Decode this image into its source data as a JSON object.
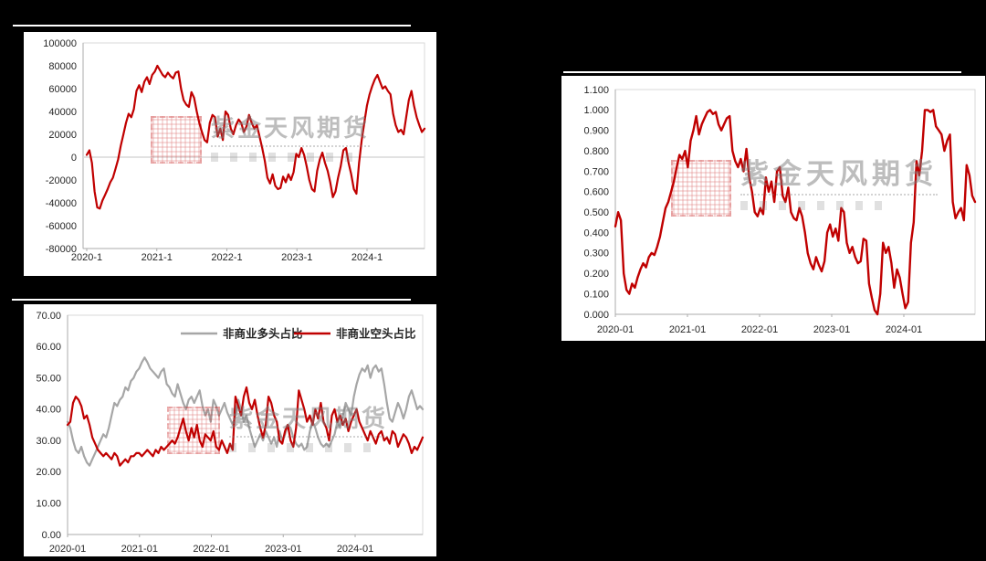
{
  "page": {
    "background_color": "#000000",
    "panel_color": "#ffffff",
    "divider_color": "#ffffff"
  },
  "watermark": {
    "brand_text": "紫金天风期货",
    "stamp_color": "#c00000",
    "text_color": "#7d7d7d"
  },
  "chart_data": [
    {
      "id": "cot_net",
      "type": "line",
      "title": "",
      "xlabel": "",
      "ylabel": "",
      "ylim": [
        -80000,
        100000
      ],
      "yticks": [
        "100000",
        "80000",
        "60000",
        "40000",
        "20000",
        "0",
        "-20000",
        "-40000",
        "-60000",
        "-80000"
      ],
      "negative_tick_color": "#fb2020",
      "xticks": [
        "2020-1",
        "2021-1",
        "2022-1",
        "2023-1",
        "2024-1"
      ],
      "grid": "zero-line-only",
      "show_zero_line": true,
      "legend_position": "none",
      "points_per_year": 26,
      "series": [
        {
          "name": "",
          "color": "#c00000",
          "width": 2.2,
          "values": [
            2000,
            6000,
            -5000,
            -30000,
            -44000,
            -45000,
            -38000,
            -33000,
            -28000,
            -22000,
            -18000,
            -10000,
            -2000,
            10000,
            20000,
            30000,
            38000,
            35000,
            42000,
            58000,
            63000,
            57000,
            66000,
            70000,
            64000,
            72000,
            75000,
            80000,
            76000,
            72000,
            70000,
            74000,
            71000,
            69000,
            74000,
            75000,
            60000,
            50000,
            46000,
            44000,
            57000,
            52000,
            40000,
            30000,
            22000,
            15000,
            13000,
            30000,
            37000,
            35000,
            18000,
            25000,
            15000,
            40000,
            37000,
            25000,
            20000,
            28000,
            33000,
            30000,
            22000,
            27000,
            37000,
            30000,
            25000,
            28000,
            18000,
            8000,
            -3000,
            -18000,
            -23000,
            -15000,
            -25000,
            -28000,
            -27000,
            -17000,
            -22000,
            -15000,
            -20000,
            -13000,
            3000,
            0,
            8000,
            2000,
            -8000,
            -20000,
            -28000,
            -30000,
            -12000,
            -2000,
            4000,
            -5000,
            -12000,
            -22000,
            -35000,
            -30000,
            -18000,
            -8000,
            6000,
            8000,
            -5000,
            -15000,
            -28000,
            -32000,
            -5000,
            15000,
            30000,
            45000,
            55000,
            62000,
            68000,
            72000,
            66000,
            60000,
            62000,
            58000,
            55000,
            38000,
            28000,
            22000,
            24000,
            20000,
            35000,
            50000,
            58000,
            45000,
            35000,
            28000,
            22000,
            25000
          ]
        }
      ]
    },
    {
      "id": "pos_pct",
      "type": "line",
      "title": "",
      "xlabel": "",
      "ylabel": "",
      "ylim": [
        0,
        70
      ],
      "yticks": [
        "70.00",
        "60.00",
        "50.00",
        "40.00",
        "30.00",
        "20.00",
        "10.00",
        "0.00"
      ],
      "negative_tick_color": "#fb2020",
      "xticks": [
        "2020-01",
        "2021-01",
        "2022-01",
        "2023-01",
        "2024-01"
      ],
      "grid": "off",
      "show_zero_line": false,
      "legend_position": "top",
      "points_per_year": 26,
      "series": [
        {
          "name": "非商业多头占比",
          "color": "#a6a6a6",
          "width": 2.2,
          "values": [
            36,
            34,
            30,
            27,
            26,
            28,
            25,
            23,
            22,
            24,
            26,
            28,
            30,
            32,
            31,
            34,
            38,
            42,
            41,
            43,
            44,
            47,
            46,
            49,
            50,
            52,
            53,
            55,
            56.5,
            55,
            53,
            52,
            51,
            50,
            52,
            53,
            48,
            47,
            45,
            44,
            48,
            45,
            42,
            40,
            43,
            44,
            42,
            44,
            46,
            41,
            38,
            40,
            36,
            43,
            41,
            38,
            40,
            42,
            39,
            37,
            35,
            38,
            43,
            40,
            36,
            38,
            34,
            31,
            28,
            30,
            32,
            30,
            33,
            31,
            29,
            31,
            28,
            33,
            30,
            32,
            35,
            34,
            31,
            29,
            28,
            29,
            27,
            28,
            33,
            36,
            34,
            31,
            29,
            28,
            29,
            28,
            30,
            32,
            36,
            34,
            38,
            42,
            40,
            38,
            44,
            48,
            51,
            53,
            52,
            54,
            50,
            53,
            54,
            52,
            53,
            48,
            42,
            37,
            36,
            39,
            42,
            40,
            37,
            40,
            44,
            46,
            43,
            40,
            41,
            40
          ]
        },
        {
          "name": "非商业空头占比",
          "color": "#c00000",
          "width": 2.2,
          "values": [
            35,
            36,
            42,
            44,
            43,
            41,
            37,
            38,
            35,
            31,
            29,
            27,
            26,
            25,
            26,
            25,
            24,
            26,
            25,
            22,
            23,
            24,
            23,
            25,
            25,
            26,
            26,
            25,
            26,
            27,
            26,
            25,
            27,
            26,
            28,
            27,
            28,
            29,
            30,
            29,
            31,
            34,
            37,
            33,
            30,
            34,
            31,
            35,
            30,
            28,
            32,
            31,
            30,
            33,
            28,
            27,
            30,
            28,
            26,
            29,
            27,
            44,
            41,
            38,
            44,
            47,
            42,
            40,
            43,
            38,
            34,
            31,
            35,
            44,
            42,
            38,
            36,
            30,
            29,
            33,
            35,
            30,
            28,
            34,
            46,
            43,
            40,
            36,
            38,
            35,
            40,
            37,
            42,
            36,
            34,
            30,
            38,
            40,
            36,
            38,
            35,
            37,
            33,
            36,
            38,
            40,
            36,
            34,
            32,
            30,
            33,
            31,
            29,
            32,
            33,
            30,
            31,
            29,
            33,
            32,
            28,
            30,
            32,
            31,
            29,
            26,
            28,
            27,
            29,
            31
          ]
        }
      ]
    },
    {
      "id": "sl_ratio",
      "type": "line",
      "title": "",
      "xlabel": "",
      "ylabel": "",
      "ylim": [
        0,
        1.1
      ],
      "yticks": [
        "1.100",
        "1.000",
        "0.900",
        "0.800",
        "0.700",
        "0.600",
        "0.500",
        "0.400",
        "0.300",
        "0.200",
        "0.100",
        "0.000"
      ],
      "negative_tick_color": "#fb2020",
      "xticks": [
        "2020-01",
        "2021-01",
        "2022-01",
        "2023-01",
        "2024-01"
      ],
      "grid": "off",
      "show_zero_line": false,
      "legend_position": "none",
      "points_per_year": 26,
      "series": [
        {
          "name": "",
          "color": "#c00000",
          "width": 2.4,
          "values": [
            0.43,
            0.5,
            0.46,
            0.2,
            0.12,
            0.1,
            0.15,
            0.13,
            0.18,
            0.22,
            0.25,
            0.23,
            0.28,
            0.3,
            0.29,
            0.33,
            0.38,
            0.45,
            0.52,
            0.55,
            0.6,
            0.65,
            0.72,
            0.78,
            0.76,
            0.8,
            0.72,
            0.85,
            0.9,
            0.97,
            0.88,
            0.93,
            0.96,
            0.99,
            1.0,
            0.98,
            0.99,
            0.93,
            0.9,
            0.93,
            0.96,
            0.97,
            0.8,
            0.75,
            0.72,
            0.76,
            0.7,
            0.81,
            0.67,
            0.6,
            0.5,
            0.48,
            0.52,
            0.49,
            0.67,
            0.6,
            0.65,
            0.55,
            0.7,
            0.72,
            0.58,
            0.55,
            0.62,
            0.5,
            0.47,
            0.46,
            0.52,
            0.48,
            0.4,
            0.3,
            0.25,
            0.22,
            0.28,
            0.24,
            0.21,
            0.26,
            0.4,
            0.44,
            0.38,
            0.42,
            0.36,
            0.52,
            0.5,
            0.35,
            0.3,
            0.33,
            0.28,
            0.25,
            0.26,
            0.37,
            0.36,
            0.15,
            0.08,
            0.02,
            0.0,
            0.1,
            0.35,
            0.3,
            0.33,
            0.25,
            0.13,
            0.22,
            0.18,
            0.1,
            0.03,
            0.06,
            0.35,
            0.45,
            0.75,
            0.68,
            0.8,
            1.0,
            1.0,
            0.99,
            1.0,
            0.92,
            0.9,
            0.88,
            0.8,
            0.85,
            0.88,
            0.55,
            0.47,
            0.5,
            0.52,
            0.46,
            0.73,
            0.68,
            0.58,
            0.55
          ]
        }
      ]
    }
  ]
}
